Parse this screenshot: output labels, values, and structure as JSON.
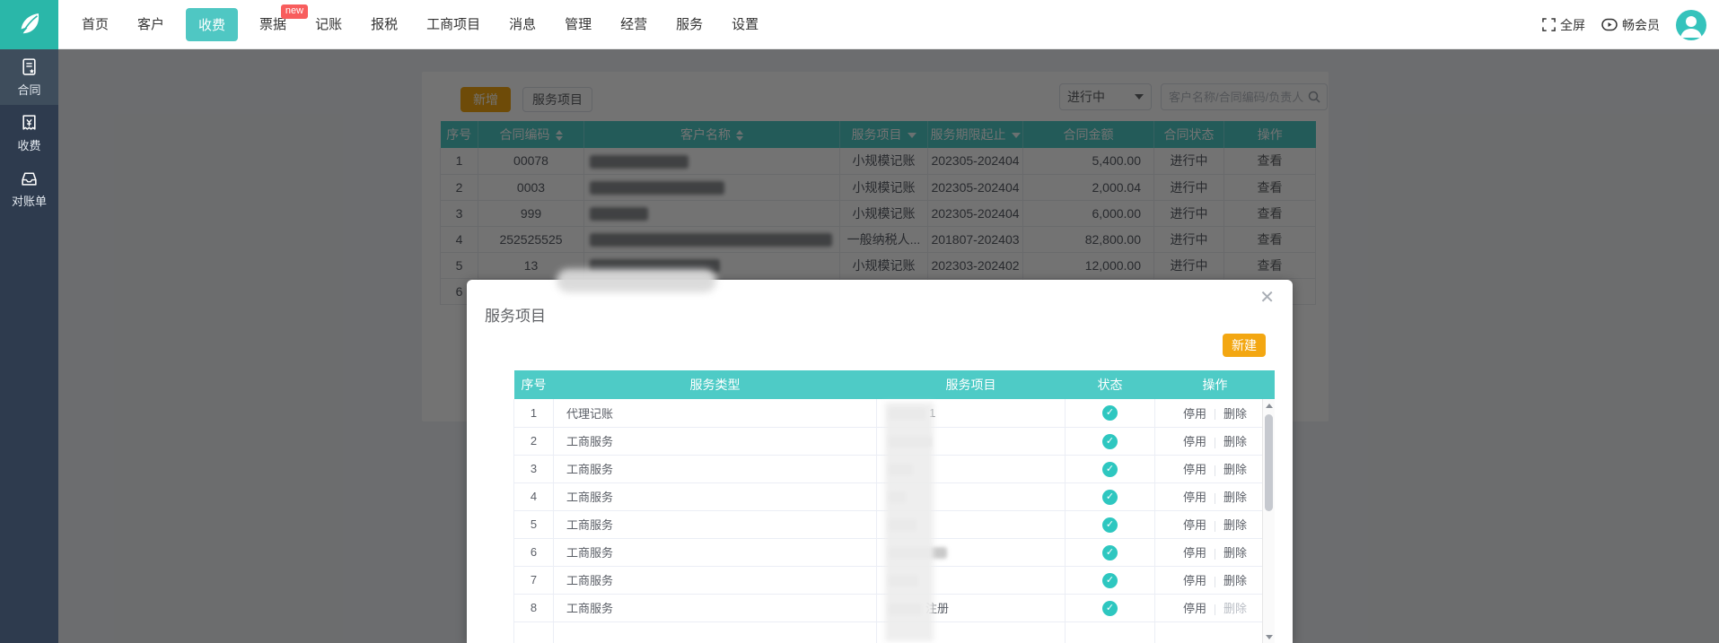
{
  "colors": {
    "brand_teal": "#2ab7a9",
    "active_pill_teal": "#4fc7c3",
    "table_header_teal": "#4ecbc6",
    "accent_orange": "#f3a712",
    "badge_red": "#f85d5d",
    "status_check_teal": "#2ec7c0",
    "sidebar_dark": "#2e3b4e"
  },
  "topbar": {
    "nav": [
      {
        "label": "首页"
      },
      {
        "label": "客户"
      },
      {
        "label": "收费",
        "active": true
      },
      {
        "label": "票据",
        "badge": "new"
      },
      {
        "label": "记账"
      },
      {
        "label": "报税"
      },
      {
        "label": "工商项目"
      },
      {
        "label": "消息"
      },
      {
        "label": "管理"
      },
      {
        "label": "经营"
      },
      {
        "label": "服务"
      },
      {
        "label": "设置"
      }
    ],
    "fullscreen_label": "全屏",
    "member_label": "畅会员"
  },
  "sidebar": {
    "items": [
      {
        "label": "合同",
        "active": true
      },
      {
        "label": "收费"
      },
      {
        "label": "对账单"
      }
    ]
  },
  "toolbar": {
    "add_label": "新增",
    "service_items_label": "服务项目",
    "status_filter_value": "进行中",
    "search_placeholder": "客户名称/合同编码/负责人"
  },
  "contracts": {
    "headers": [
      "序号",
      "合同编码",
      "客户名称",
      "服务项目",
      "服务期限起止",
      "合同金额",
      "合同状态",
      "操作"
    ],
    "view_label": "查看",
    "rows": [
      {
        "no": "1",
        "code": "00078",
        "mask_w": 110,
        "service": "小规模记账",
        "period": "202305-202404",
        "amount": "5,400.00",
        "status": "进行中"
      },
      {
        "no": "2",
        "code": "0003",
        "mask_w": 150,
        "service": "小规模记账",
        "period": "202305-202404",
        "amount": "2,000.04",
        "status": "进行中"
      },
      {
        "no": "3",
        "code": "999",
        "mask_w": 65,
        "service": "小规模记账",
        "period": "202305-202404",
        "amount": "6,000.00",
        "status": "进行中"
      },
      {
        "no": "4",
        "code": "252525525",
        "mask_w": 270,
        "service": "一般纳税人...",
        "period": "201807-202403",
        "amount": "82,800.00",
        "status": "进行中"
      },
      {
        "no": "5",
        "code": "13",
        "mask_w": 145,
        "service": "小规模记账",
        "period": "202303-202402",
        "amount": "12,000.00",
        "status": "进行中"
      },
      {
        "no": "6",
        "code": "",
        "mask_w": 0,
        "service": "",
        "period": "",
        "amount": "",
        "status": ""
      }
    ]
  },
  "dialog": {
    "title": "服务项目",
    "new_label": "新建",
    "headers": [
      "序号",
      "服务类型",
      "服务项目",
      "状态",
      "操作"
    ],
    "stop_label": "停用",
    "delete_label": "删除",
    "rows": [
      {
        "no": "1",
        "type": "代理记账",
        "name_suffix": "1",
        "mask_w": 40
      },
      {
        "no": "2",
        "type": "工商服务",
        "name_suffix": "",
        "mask_w": 46
      },
      {
        "no": "3",
        "type": "工商服务",
        "name_suffix": "",
        "mask_w": 26
      },
      {
        "no": "4",
        "type": "工商服务",
        "name_suffix": "",
        "mask_w": 18
      },
      {
        "no": "5",
        "type": "工商服务",
        "name_suffix": "",
        "mask_w": 30
      },
      {
        "no": "6",
        "type": "工商服务",
        "name_suffix": "",
        "mask_w": 64
      },
      {
        "no": "7",
        "type": "工商服务",
        "name_suffix": "",
        "mask_w": 32
      },
      {
        "no": "8",
        "type": "工商服务",
        "name_suffix": "注册",
        "mask_w": 36,
        "delete_muted": true
      }
    ]
  }
}
